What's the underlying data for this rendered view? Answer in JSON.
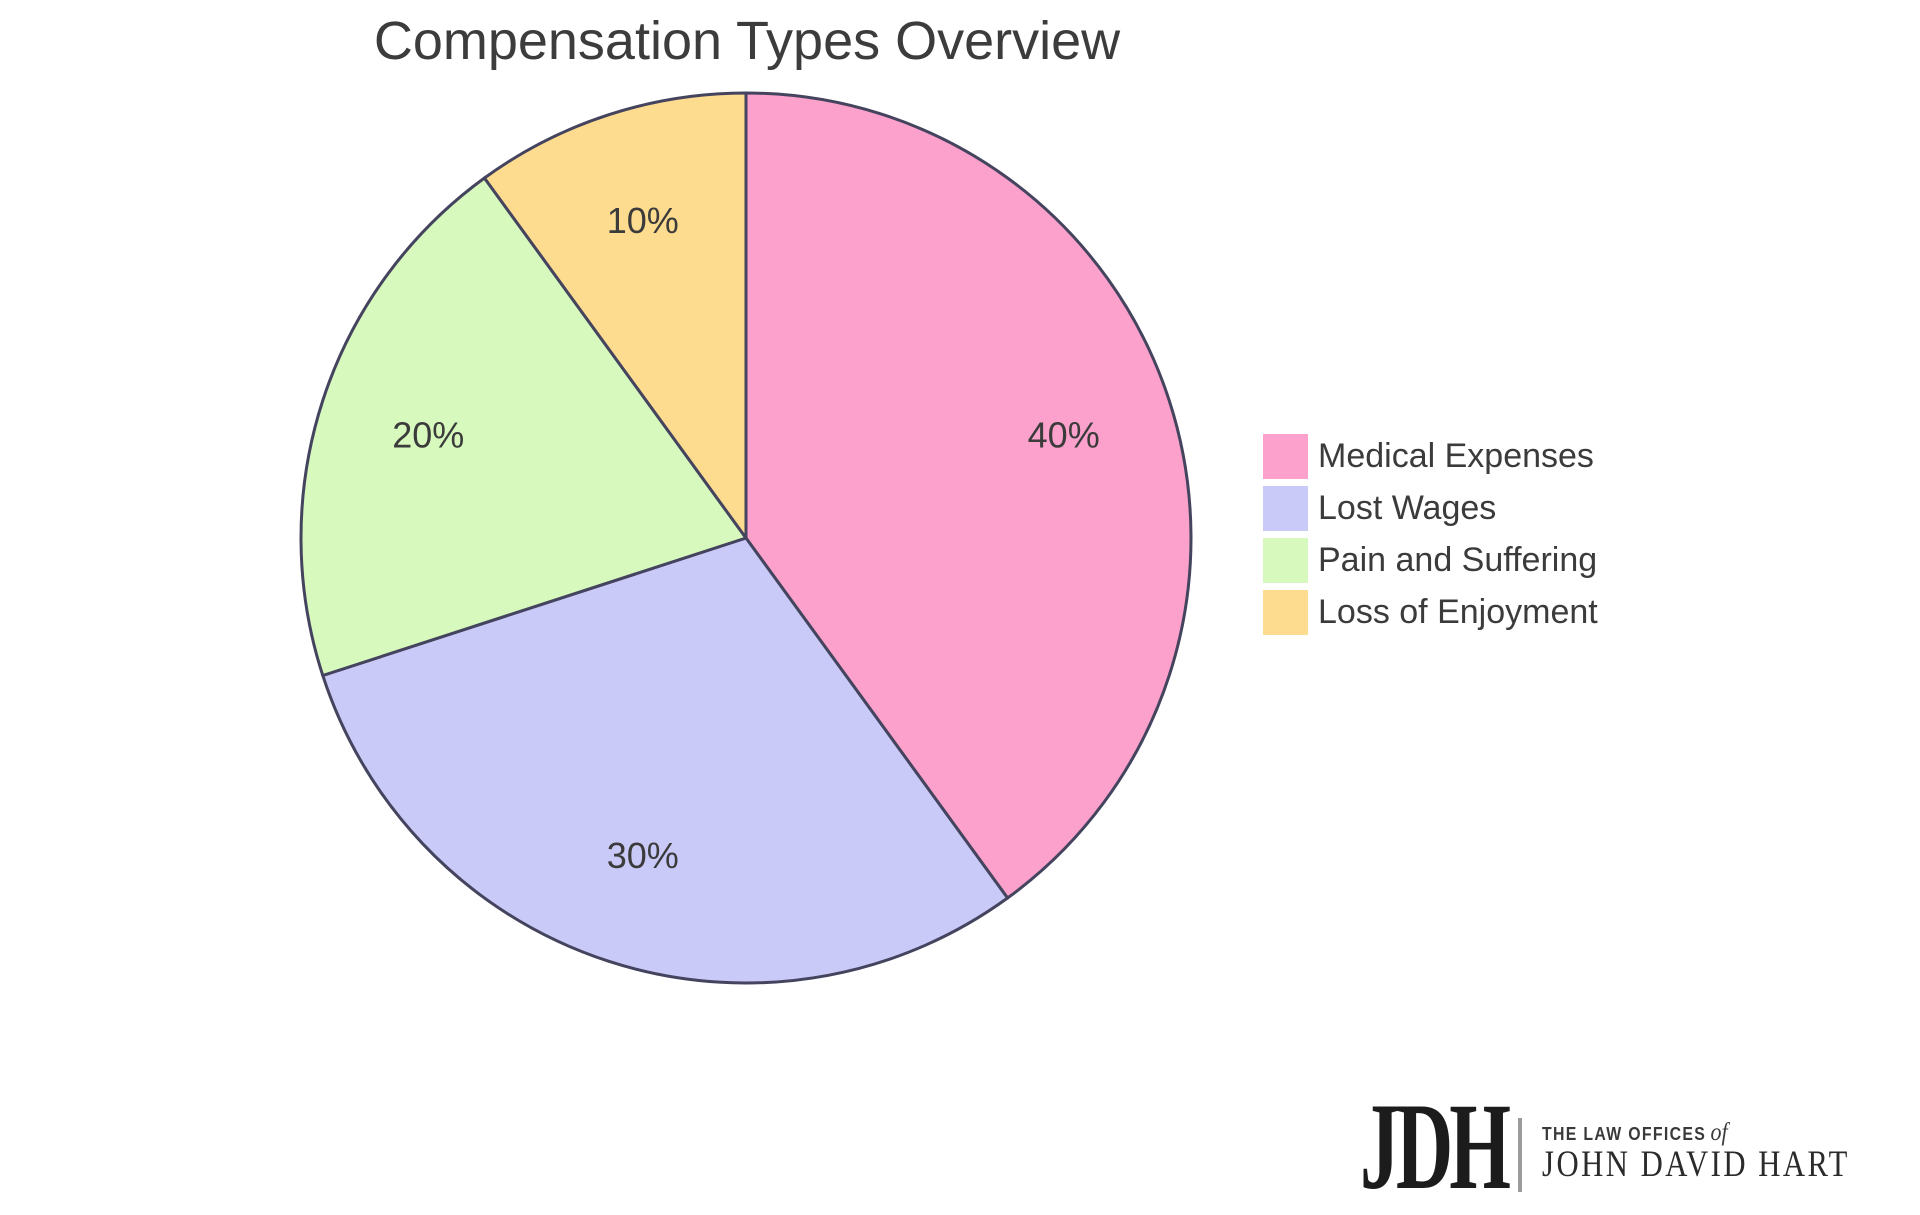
{
  "page": {
    "background_color": "#FFFFFF"
  },
  "chart_data": {
    "type": "pie",
    "title": "Compensation Types Overview",
    "categories": [
      "Medical Expenses",
      "Lost Wages",
      "Pain and Suffering",
      "Loss of Enjoyment"
    ],
    "values": [
      40,
      30,
      20,
      10
    ],
    "labels": [
      "40%",
      "30%",
      "20%",
      "10%"
    ],
    "colors": [
      "#FBA1CB",
      "#CACAF9",
      "#D7F9BE",
      "#FDDC8F"
    ],
    "stroke_color": "#45445F",
    "label_color": "#3B3B3B",
    "title_color": "#3C3C3C",
    "start_angle_deg": 0,
    "direction": "clockwise",
    "legend_position": "right"
  },
  "logo": {
    "monogram": "JDH",
    "line1_prefix": "THE LAW OFFICES",
    "line1_italic": "of",
    "line2": "JOHN DAVID HART"
  }
}
